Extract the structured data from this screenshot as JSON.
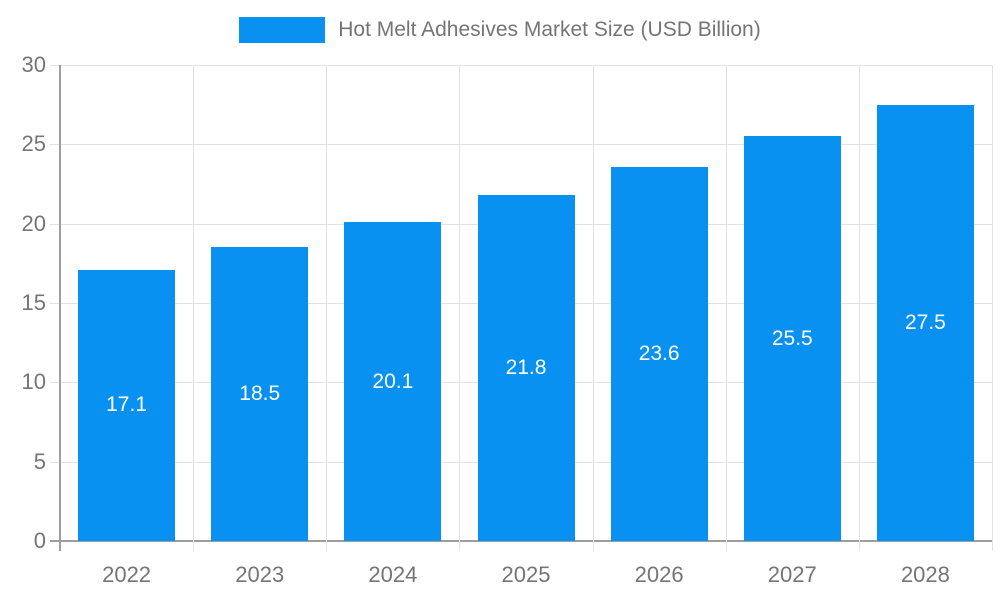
{
  "chart_data": {
    "type": "bar",
    "title": "Hot Melt Adhesives Market Size (USD Billion)",
    "legend": {
      "position": "top-center",
      "entries": [
        "Hot Melt Adhesives Market Size (USD Billion)"
      ]
    },
    "categories": [
      "2022",
      "2023",
      "2024",
      "2025",
      "2026",
      "2027",
      "2028"
    ],
    "values": [
      17.1,
      18.5,
      20.1,
      21.8,
      23.6,
      25.5,
      27.5
    ],
    "value_labels_shown": true,
    "value_label_position": "inside-center",
    "xlabel": "",
    "ylabel": "",
    "ylim": [
      0,
      30
    ],
    "yticks": [
      0,
      5,
      10,
      15,
      20,
      25,
      30
    ],
    "grid": true,
    "colors": {
      "bar": "#0991f2",
      "value_label": "#ffffff",
      "axis_text": "#757575",
      "title_text": "#757575",
      "grid_line": "#e2e2e2",
      "axis_line": "#9e9e9e",
      "background": "#ffffff"
    }
  }
}
